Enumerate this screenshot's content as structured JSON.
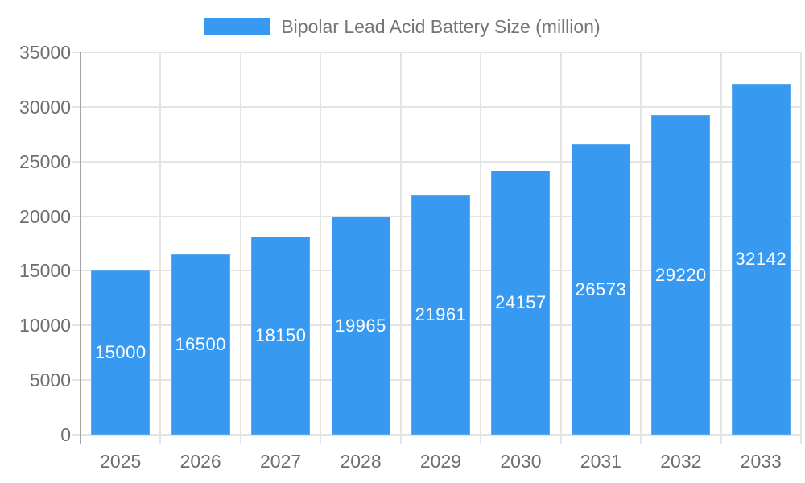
{
  "chart_data": {
    "type": "bar",
    "title": "Bipolar Lead Acid Battery Size (million)",
    "legend": [
      "Bipolar Lead Acid Battery Size (million)"
    ],
    "legend_position": "top-center",
    "categories": [
      "2025",
      "2026",
      "2027",
      "2028",
      "2029",
      "2030",
      "2031",
      "2032",
      "2033"
    ],
    "values": [
      15000,
      16500,
      18150,
      19965,
      21961,
      24157,
      26573,
      29220,
      32142
    ],
    "value_labels": [
      "15000",
      "16500",
      "18150",
      "19965",
      "21961",
      "24157",
      "26573",
      "29220",
      "32142"
    ],
    "xlabel": "",
    "ylabel": "",
    "ylim": [
      0,
      35000
    ],
    "ytick_step": 5000,
    "y_tick_labels": [
      "0",
      "5000",
      "10000",
      "15000",
      "20000",
      "25000",
      "30000",
      "35000"
    ],
    "grid": true,
    "colors": {
      "bar": "#3899f0",
      "bar_border": "#5caaf2",
      "value_label": "#ffffff",
      "axis_text": "#6e6e6e",
      "legend_text": "#757575",
      "grid_line": "#e4e4e4",
      "axis_line": "#a3a3a3",
      "background": "#ffffff"
    }
  }
}
